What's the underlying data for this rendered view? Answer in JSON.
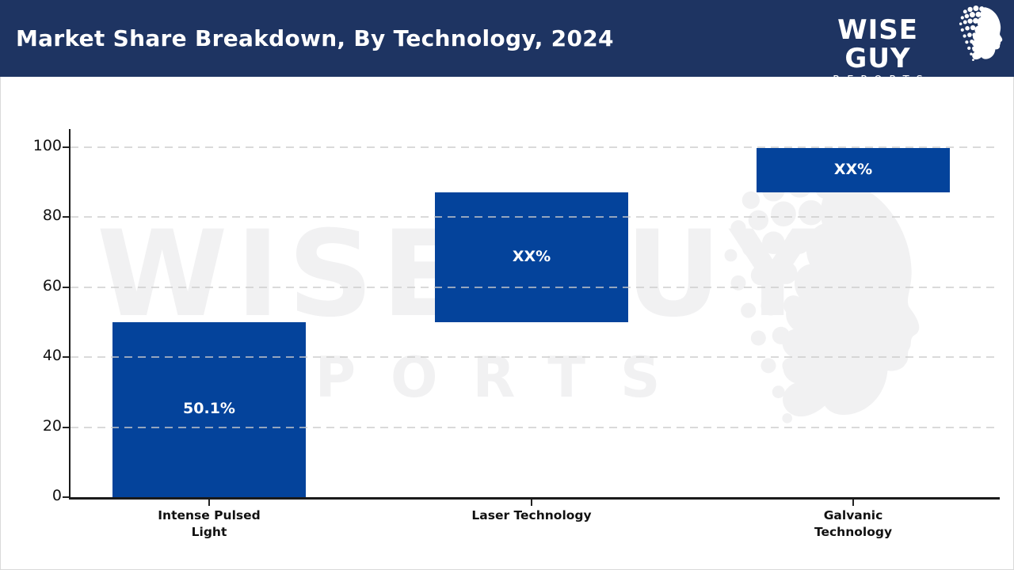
{
  "header": {
    "title": "Market Share Breakdown, By Technology, 2024",
    "logo": {
      "line1": "WISE GUY",
      "line2": "REPORTS"
    }
  },
  "watermark": {
    "line1": "WISE GUY",
    "line2": "REPORTS"
  },
  "chart_data": {
    "type": "bar",
    "subtype": "floating-segment-waterfall",
    "title": "Market Share Breakdown, By Technology, 2024",
    "xlabel": "",
    "ylabel": "",
    "ylim": [
      0,
      100
    ],
    "yticks": [
      0,
      20,
      40,
      60,
      80,
      100
    ],
    "grid": "horizontal-dashed",
    "legend": "none",
    "bar_color": "#04439b",
    "bar_label_color": "#ffffff",
    "categories": [
      "Intense Pulsed Light",
      "Laser Technology",
      "Galvanic Technology"
    ],
    "category_label_lines": [
      [
        "Intense Pulsed",
        "Light"
      ],
      [
        "Laser Technology"
      ],
      [
        "Galvanic",
        "Technology"
      ]
    ],
    "segments": [
      {
        "category": "Intense Pulsed Light",
        "start": 0,
        "end": 50.1,
        "label": "50.1%"
      },
      {
        "category": "Laser Technology",
        "start": 50.1,
        "end": 87.1,
        "label": "XX%"
      },
      {
        "category": "Galvanic Technology",
        "start": 87.1,
        "end": 99.7,
        "label": "XX%"
      }
    ]
  }
}
